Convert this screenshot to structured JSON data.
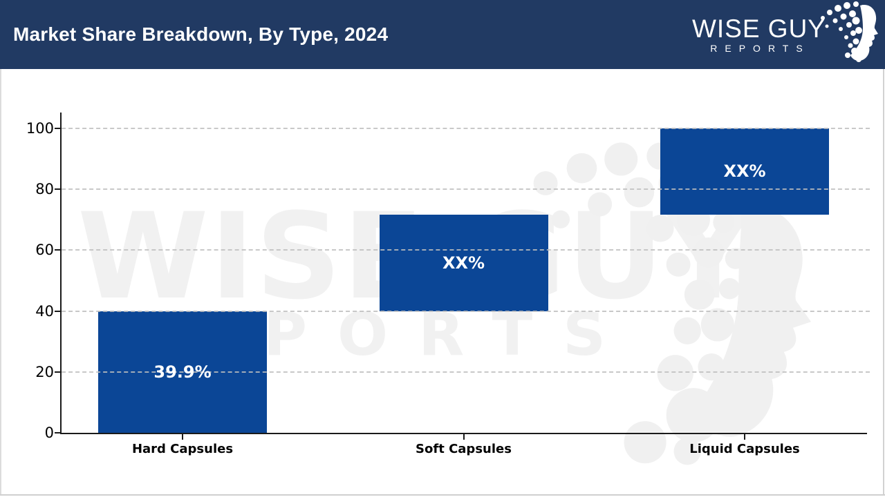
{
  "header": {
    "title": "Market Share Breakdown, By Type, 2024",
    "bg_color": "#213a63",
    "logo": {
      "line1": "WISE GUY",
      "line2": "REPORTS"
    }
  },
  "watermark": {
    "line1": "WISE GUY",
    "line2": "REPORTS"
  },
  "chart_data": {
    "type": "bar",
    "subtype": "floating-segment-waterfall",
    "title": "Market Share Breakdown, By Type, 2024",
    "categories": [
      "Hard Capsules",
      "Soft Capsules",
      "Liquid Capsules"
    ],
    "segments": [
      {
        "category": "Hard Capsules",
        "start": 0,
        "end": 39.9,
        "label": "39.9%"
      },
      {
        "category": "Soft Capsules",
        "start": 39.9,
        "end": 71.7,
        "label": "XX%"
      },
      {
        "category": "Liquid Capsules",
        "start": 71.7,
        "end": 100,
        "label": "XX%"
      }
    ],
    "yticks": [
      0,
      20,
      40,
      60,
      80,
      100
    ],
    "ylim": [
      0,
      105
    ],
    "xlabel": "",
    "ylabel": "",
    "grid": "horizontal-dashed",
    "legend": "none",
    "bar_color": "#0b4696",
    "text_color": "#000000",
    "bar_label_color": "#ffffff"
  }
}
